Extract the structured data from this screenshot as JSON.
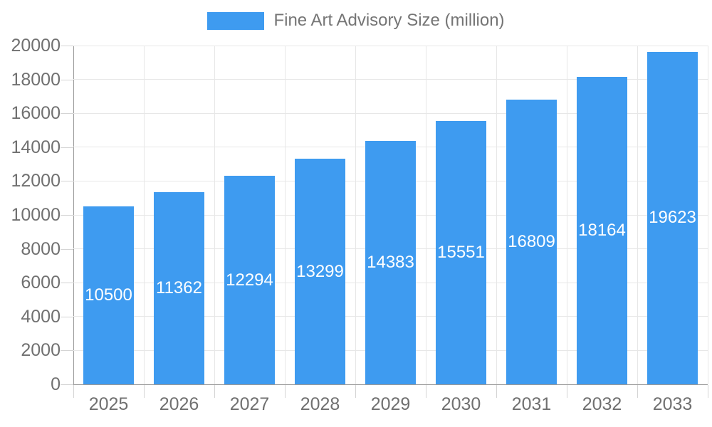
{
  "legend": {
    "items": [
      {
        "label": "Fine Art Advisory Size (million)"
      }
    ]
  },
  "chart_data": {
    "type": "bar",
    "title": "Fine Art Advisory Size (million)",
    "categories": [
      "2025",
      "2026",
      "2027",
      "2028",
      "2029",
      "2030",
      "2031",
      "2032",
      "2033"
    ],
    "values": [
      10500,
      11362,
      12294,
      13299,
      14383,
      15551,
      16809,
      18164,
      19623
    ],
    "xlabel": "",
    "ylabel": "",
    "ylim": [
      0,
      20000
    ],
    "ytick_step": 2000,
    "grid": true,
    "legend_position": "top",
    "value_labels_position": "inside-center",
    "colors": {
      "bar": "#3e9bf0",
      "grid": "#e7e7e7",
      "axis": "#9b9b9b",
      "tick": "#d4d4d4",
      "tick_label": "#707070",
      "legend_text": "#757575",
      "value_label": "#ffffff",
      "background": "#ffffff"
    }
  }
}
